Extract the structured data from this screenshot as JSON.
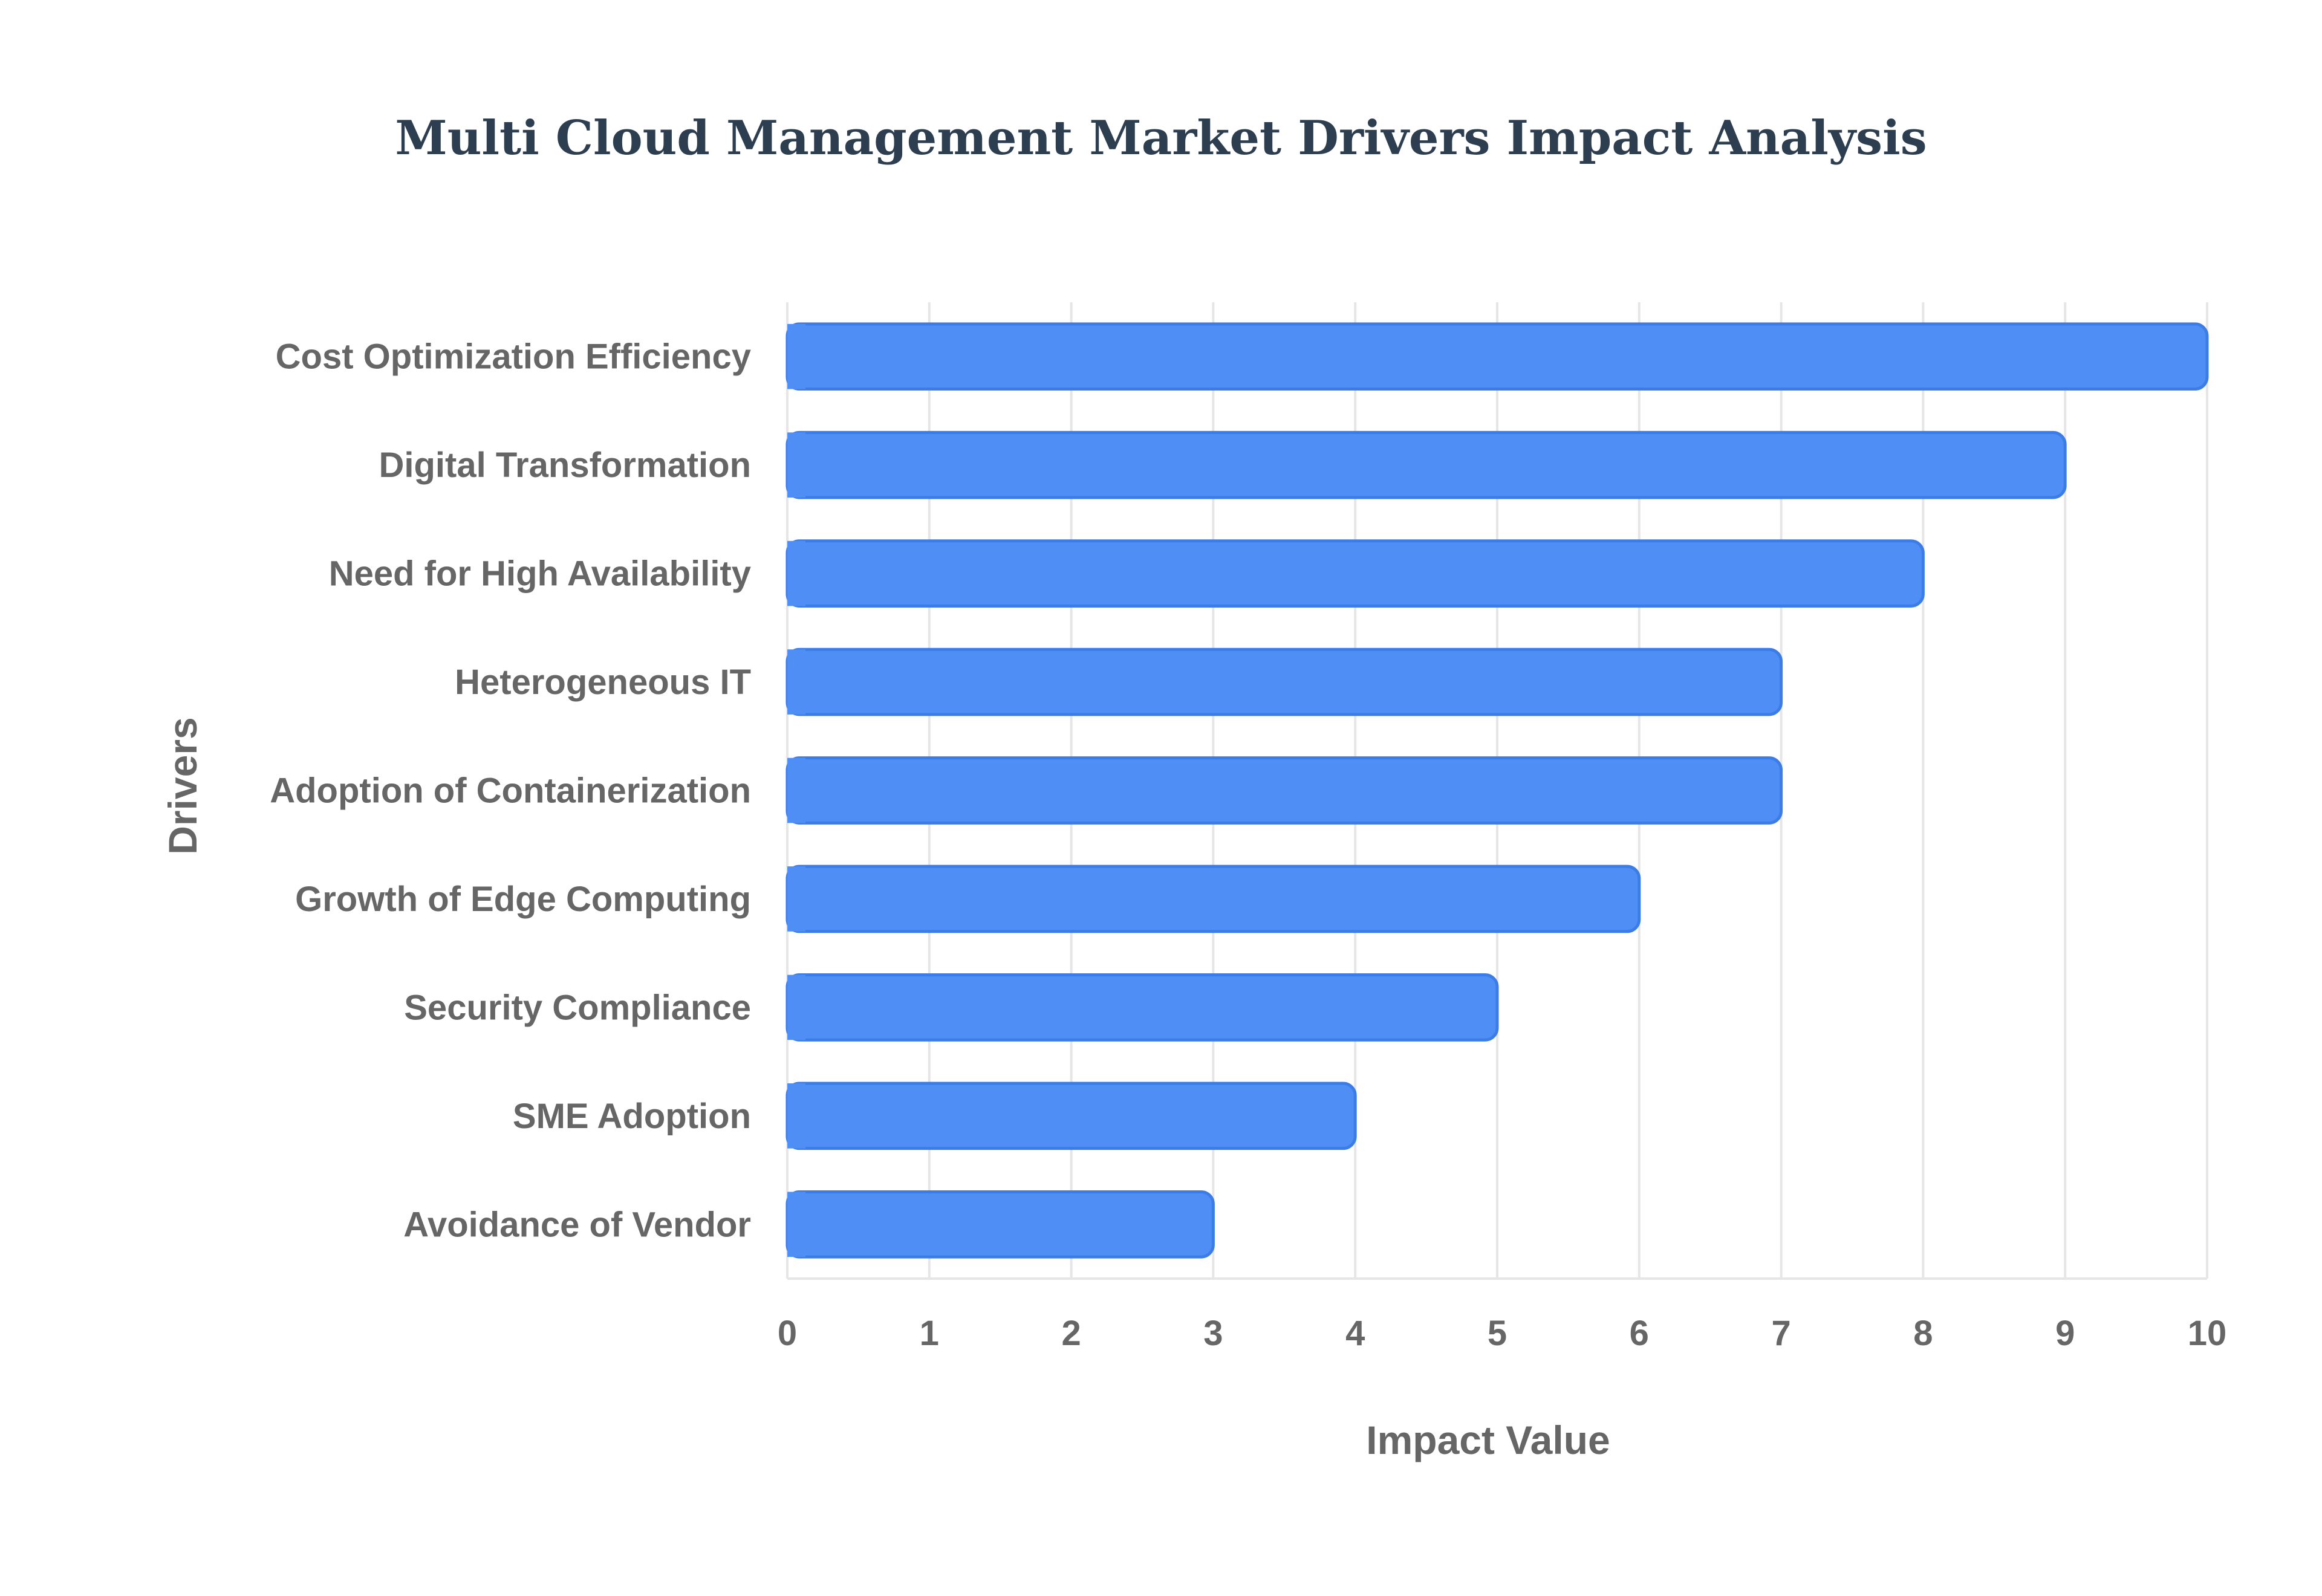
{
  "chart_data": {
    "type": "bar",
    "orientation": "horizontal",
    "title": "Multi Cloud Management Market Drivers Impact Analysis",
    "xlabel": "Impact Value",
    "ylabel": "Drivers",
    "categories": [
      "Cost Optimization Efficiency",
      "Digital Transformation",
      "Need for High Availability",
      "Heterogeneous IT",
      "Adoption of Containerization",
      "Growth of Edge Computing",
      "Security Compliance",
      "SME Adoption",
      "Avoidance of Vendor"
    ],
    "values": [
      10,
      9,
      8,
      7,
      7,
      6,
      5,
      4,
      3
    ],
    "xlim": [
      0,
      10
    ],
    "xticks": [
      "0",
      "1",
      "2",
      "3",
      "4",
      "5",
      "6",
      "7",
      "8",
      "9",
      "10"
    ],
    "grid": true,
    "legend": "none",
    "colors": {
      "bar_fill": "#4f8ef5",
      "bar_stroke": "#3b7de8",
      "grid": "#e6e6e6",
      "title": "#2c3e50",
      "text": "#666666"
    }
  }
}
